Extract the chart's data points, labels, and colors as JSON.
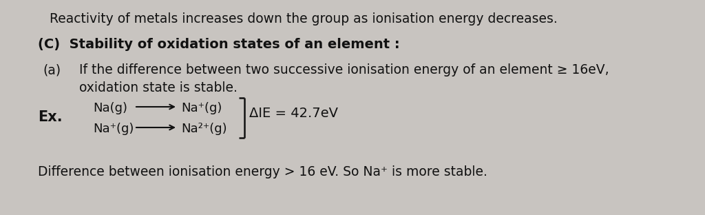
{
  "bg_color": "#c8c4c0",
  "text_color": "#111111",
  "line1": "Reactivity of metals increases down the group as ionisation energy decreases.",
  "line2_bold": "(C)  Stability of oxidation states of an element :",
  "line3_label": "(a)",
  "line3_text": "If the difference between two successive ionisation energy of an element ≥ 16eV,",
  "line4_indent": "oxidation state is stable.",
  "ex_label": "Ex.",
  "r1_left": "Na(g)",
  "arrow": "——→",
  "r1_right": "Na⁺(g)",
  "r2_left": "Na⁺(g)",
  "r2_right": "Na²⁺(g)",
  "delta_ie": "ΔIE = 42.7eV",
  "last_line": "Difference between ionisation energy > 16 eV. So Na⁺ is more stable."
}
